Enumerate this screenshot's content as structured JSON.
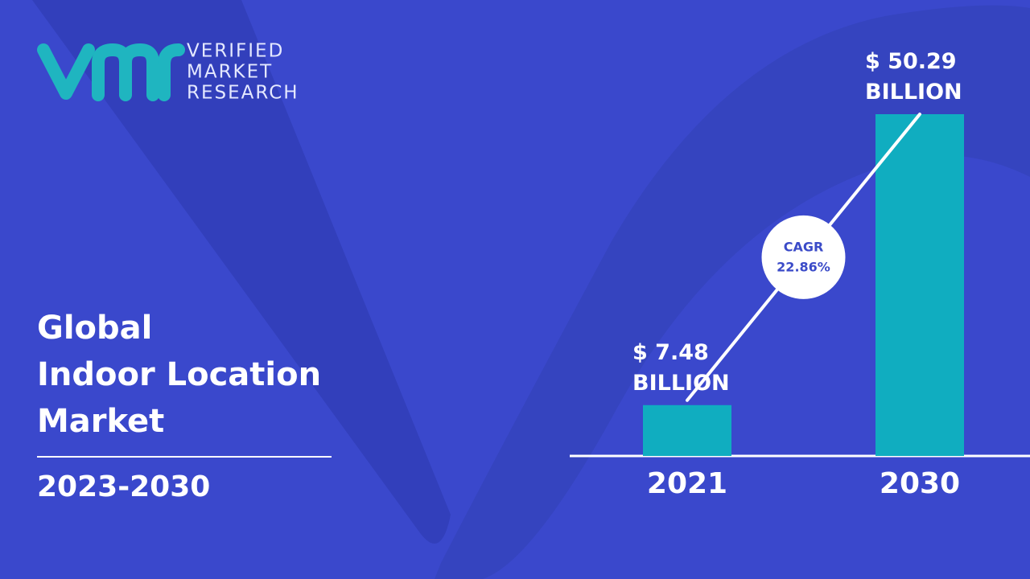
{
  "logo": {
    "lines": [
      "VERIFIED",
      "MARKET",
      "RESEARCH"
    ]
  },
  "title_lines": [
    "Global",
    "Indoor Location",
    "Market"
  ],
  "period": "2023-2030",
  "chart_data": {
    "type": "bar",
    "categories": [
      "2021",
      "2030"
    ],
    "values": [
      7.48,
      50.29
    ],
    "value_labels": [
      "$ 7.48 BILLION",
      "$ 50.29 BILLION"
    ],
    "color": "#10adc0",
    "annotations": {
      "cagr_label": "CAGR",
      "cagr_value": "22.86%"
    }
  }
}
